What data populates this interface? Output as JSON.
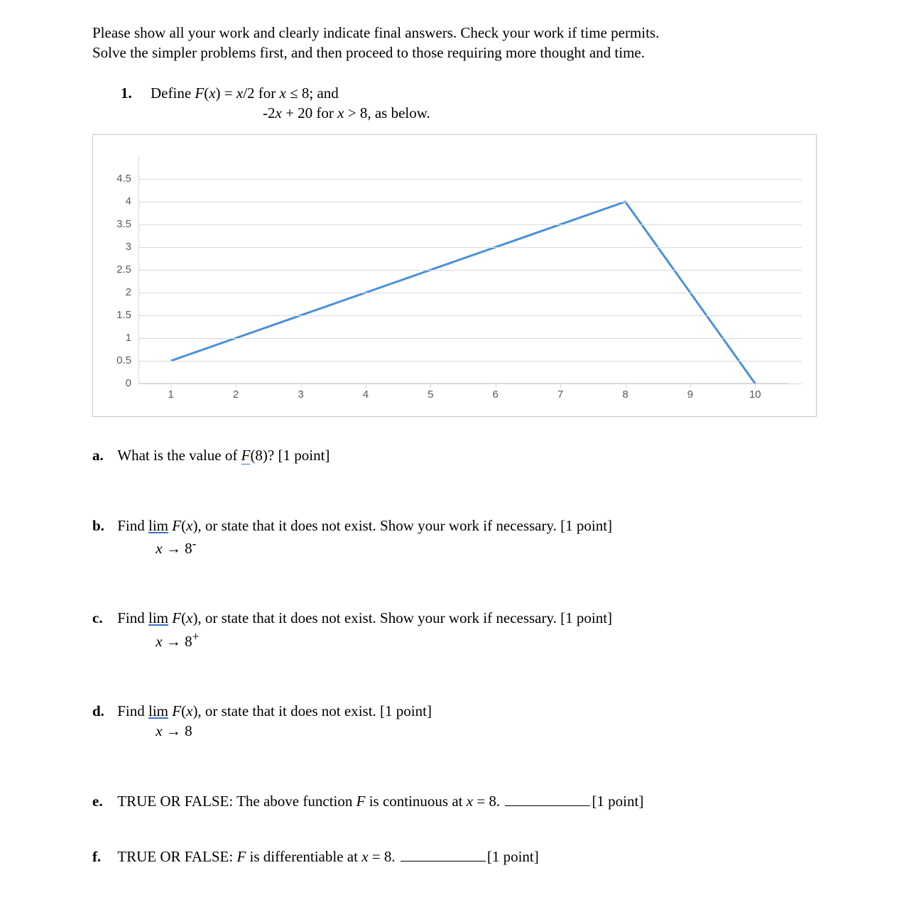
{
  "instructions": {
    "line1": "Please show all your work and clearly indicate final answers.   Check your work if time permits.",
    "line2": "Solve the simpler problems first, and then proceed to those requiring more thought and time."
  },
  "problem": {
    "number": "1.",
    "def_prefix": "Define ",
    "def_fx": "F",
    "def_open": "(",
    "def_x1": "x",
    "def_close_eq": ") = ",
    "def_expr1": "x",
    "def_expr1b": "/2 for ",
    "def_x2": "x",
    "def_le8": " ≤ 8; and",
    "def_line2_a": "-2",
    "def_line2_x": "x",
    "def_line2_b": " + 20 for ",
    "def_line2_x2": "x",
    "def_line2_c": " > 8, as below."
  },
  "chart": {
    "type": "line",
    "y_ticks": [
      "0",
      "0.5",
      "1",
      "1.5",
      "2",
      "2.5",
      "3",
      "3.5",
      "4",
      "4.5"
    ],
    "y_min": 0,
    "y_max": 5,
    "x_ticks": [
      "1",
      "2",
      "3",
      "4",
      "5",
      "6",
      "7",
      "8",
      "9",
      "10"
    ],
    "x_min": 0.5,
    "x_max": 10.5,
    "line_color": "#4a90d9",
    "line_width": 3,
    "grid_color": "#d9d9d9",
    "tick_font_family": "Arial",
    "tick_font_size": 15,
    "tick_color": "#595959",
    "points": [
      {
        "x": 1,
        "y": 0.5
      },
      {
        "x": 8,
        "y": 4.0
      },
      {
        "x": 10,
        "y": 0.0
      }
    ]
  },
  "parts": {
    "a": {
      "label": "a.",
      "pre": "What is the value of ",
      "fx": "F",
      "open": "(8)?",
      "pts": " [1 point]"
    },
    "b": {
      "label": "b.",
      "pre": "Find ",
      "lim": "lim",
      "fx": " F",
      "open": "(",
      "x": "x",
      "close": "), or state that it does not exist.  Show your work if necessary.  [1 point]",
      "sub_x": "x",
      "sub_arrow": " → 8",
      "sub_sup": "-"
    },
    "c": {
      "label": "c.",
      "pre": "Find ",
      "lim": "lim",
      "fx": " F",
      "open": "(",
      "x": "x",
      "close": "), or state that it does not exist.  Show your work if necessary.  [1 point]",
      "sub_x": "x",
      "sub_arrow": " → 8",
      "sub_sup": "+"
    },
    "d": {
      "label": "d.",
      "pre": "Find ",
      "lim": "lim",
      "fx": " F",
      "open": "(",
      "x": "x",
      "close": "), or state that it does not exist.  [1 point]",
      "sub_x": "x",
      "sub_arrow": " → 8",
      "sub_sup": ""
    },
    "e": {
      "label": "e.",
      "text1": "TRUE OR FALSE:  The above function ",
      "F": "F",
      "text2": " is continuous at ",
      "x": "x",
      "text3": " = 8. ",
      "pts": "[1 point]"
    },
    "f": {
      "label": "f.",
      "text1": "TRUE OR FALSE:   ",
      "F": "F",
      "text2": " is differentiable at ",
      "x": "x",
      "text3": " = 8.   ",
      "pts": "[1 point]"
    }
  }
}
